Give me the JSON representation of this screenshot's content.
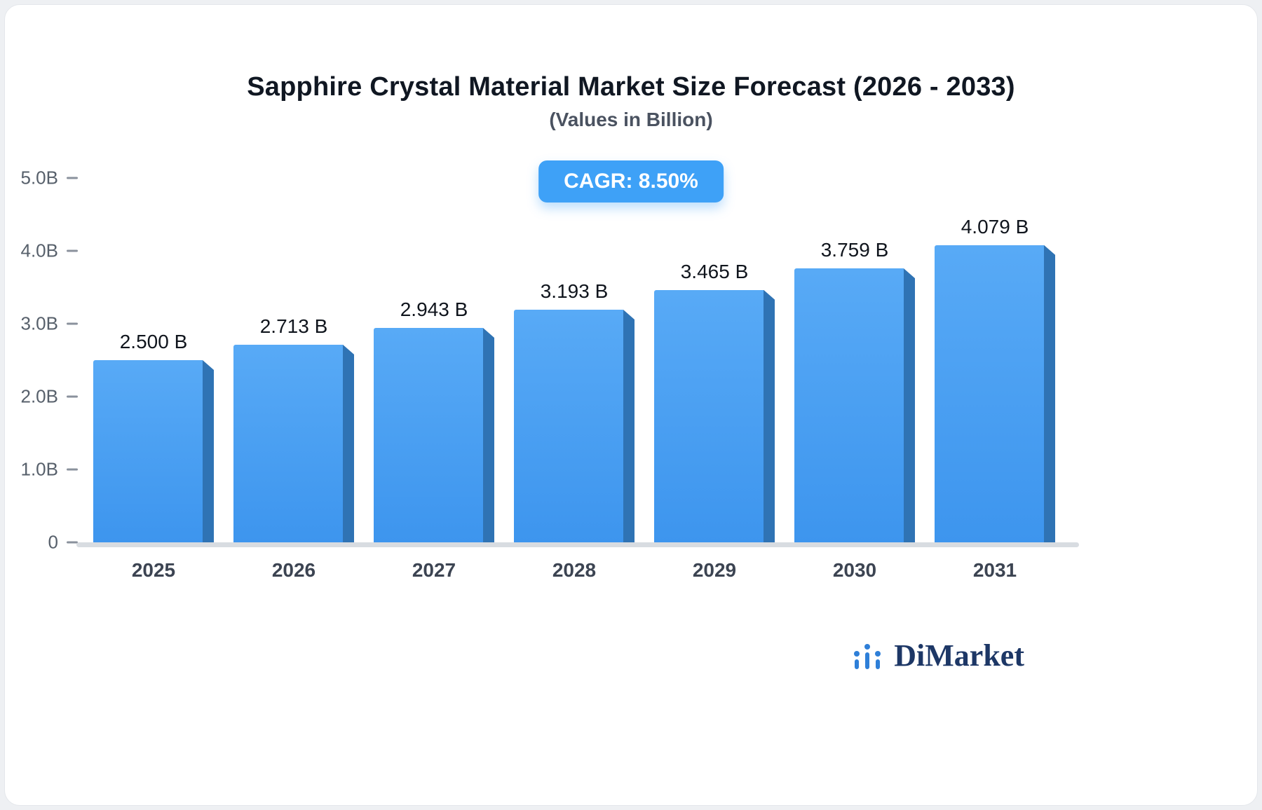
{
  "header": {
    "title": "Sapphire Crystal Material Market Size Forecast (2026 - 2033)",
    "subtitle": "(Values in Billion)"
  },
  "badge": {
    "label": "CAGR: 8.50%",
    "bg_color": "#3ea1f7",
    "text_color": "#ffffff"
  },
  "chart_data": {
    "type": "bar",
    "title": "Sapphire Crystal Material Market Size Forecast (2026 - 2033)",
    "subtitle": "(Values in Billion)",
    "categories": [
      "2025",
      "2026",
      "2027",
      "2028",
      "2029",
      "2030",
      "2031"
    ],
    "values": [
      2.5,
      2.713,
      2.943,
      3.193,
      3.465,
      3.759,
      4.079
    ],
    "value_labels": [
      "2.500 B",
      "2.713 B",
      "2.943 B",
      "3.193 B",
      "3.465 B",
      "3.759 B",
      "4.079 B"
    ],
    "xlabel": "",
    "ylabel": "",
    "ylim": [
      0,
      5.0
    ],
    "yticks": [
      {
        "value": 0,
        "label": "0"
      },
      {
        "value": 1.0,
        "label": "1.0B"
      },
      {
        "value": 2.0,
        "label": "2.0B"
      },
      {
        "value": 3.0,
        "label": "3.0B"
      },
      {
        "value": 4.0,
        "label": "4.0B"
      },
      {
        "value": 5.0,
        "label": "5.0B"
      }
    ],
    "grid": false,
    "legend": false,
    "bar_color_top": "#58aaf6",
    "bar_color_bottom": "#3d95ee",
    "bar_side_color": "#2f73b4"
  },
  "logo": {
    "text": "DiMarket",
    "icon": "bar-chart-icon",
    "text_color": "#1d3766",
    "icon_color": "#2e7fd8"
  }
}
